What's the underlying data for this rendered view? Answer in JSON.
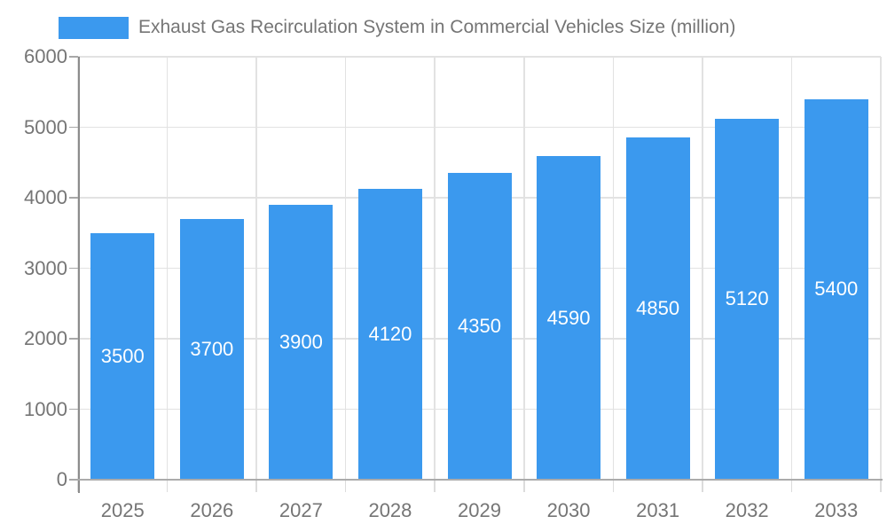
{
  "legend": {
    "label": "Exhaust Gas Recirculation System in Commercial Vehicles Size (million)"
  },
  "chart_data": {
    "type": "bar",
    "title": "Exhaust Gas Recirculation System in Commercial Vehicles Size (million)",
    "categories": [
      "2025",
      "2026",
      "2027",
      "2028",
      "2029",
      "2030",
      "2031",
      "2032",
      "2033"
    ],
    "values": [
      3500,
      3700,
      3900,
      4120,
      4350,
      4590,
      4850,
      5120,
      5400
    ],
    "xlabel": "",
    "ylabel": "",
    "ylim": [
      0,
      6000
    ],
    "yticks": [
      0,
      1000,
      2000,
      3000,
      4000,
      5000,
      6000
    ],
    "grid": true,
    "legend_position": "top",
    "bar_color": "#3B99EE",
    "bar_label_color": "#ffffff",
    "tick_label_color": "#757575",
    "grid_color": "#e2e2e2",
    "axis_color": "#8c8c8c"
  }
}
